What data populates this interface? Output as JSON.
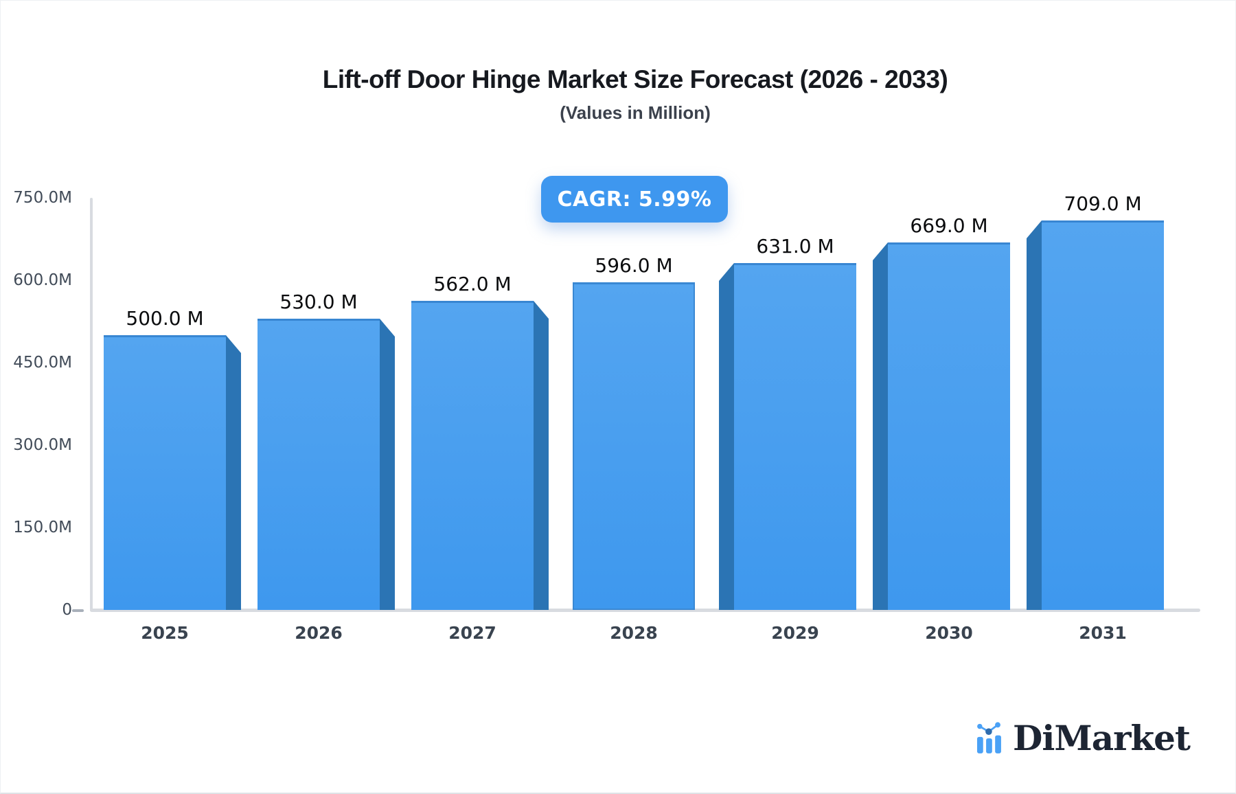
{
  "header": {
    "title": "Lift-off Door Hinge Market Size Forecast (2026 - 2033)",
    "subtitle": "(Values in Million)"
  },
  "badge": {
    "label": "CAGR: 5.99%",
    "color": "#3e97ef"
  },
  "chart_data": {
    "type": "bar",
    "title": "Lift-off Door Hinge Market Size Forecast (2026 - 2033)",
    "subtitle": "(Values in Million)",
    "annotation": "CAGR: 5.99%",
    "categories": [
      "2025",
      "2026",
      "2027",
      "2028",
      "2029",
      "2030",
      "2031"
    ],
    "values": [
      500.0,
      530.0,
      562.0,
      596.0,
      631.0,
      669.0,
      709.0
    ],
    "bar_labels": [
      "500.0 M",
      "530.0 M",
      "562.0 M",
      "596.0 M",
      "631.0 M",
      "669.0 M",
      "709.0 M"
    ],
    "unit": "Million",
    "xlabel": "",
    "ylabel": "",
    "ylim": [
      0,
      750
    ],
    "ytick_labels": [
      "750.0M",
      "600.0M",
      "450.0M",
      "300.0M",
      "150.0M",
      "0"
    ],
    "ytick_values": [
      750,
      600,
      450,
      300,
      150,
      0
    ],
    "grid": false,
    "legend": false,
    "bar_face_color": "#4aa0ee",
    "bar_side_color": "#2b74b4",
    "axis_color": "#d8dbe0"
  },
  "footer": {
    "brand": "DiMarket",
    "logo_icon": "bar-chart-trend-icon",
    "icon_color": "#4aa1f6"
  }
}
